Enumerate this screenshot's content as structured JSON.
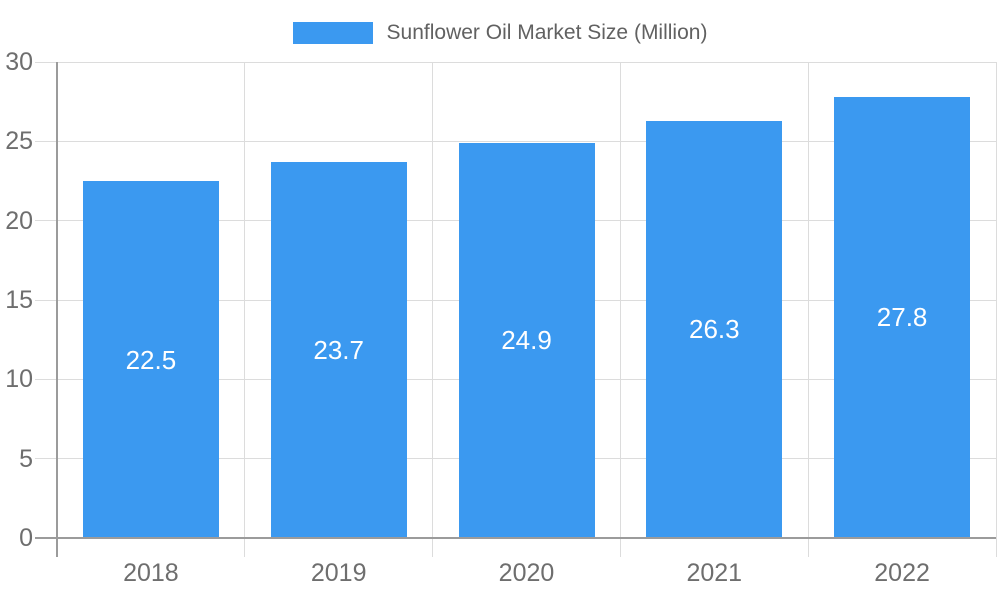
{
  "chart_data": {
    "type": "bar",
    "title": "Sunflower Oil Market Size (Million)",
    "categories": [
      "2018",
      "2019",
      "2020",
      "2021",
      "2022"
    ],
    "values": [
      22.5,
      23.7,
      24.9,
      26.3,
      27.8
    ],
    "data_labels": [
      "22.5",
      "23.7",
      "24.9",
      "26.3",
      "27.8"
    ],
    "xlabel": "",
    "ylabel": "",
    "ylim": [
      0,
      30
    ],
    "yticks": [
      0,
      5,
      10,
      15,
      20,
      25,
      30
    ],
    "grid": true,
    "legend_position": "top-center",
    "colors": {
      "bar": "#3b99f0",
      "grid": "#dcdcdc",
      "axis": "#9b9b9b",
      "tick_label_text": "#6e6e6e",
      "legend_text": "#616161",
      "data_label_text": "#ffffff",
      "background": "#ffffff"
    }
  }
}
